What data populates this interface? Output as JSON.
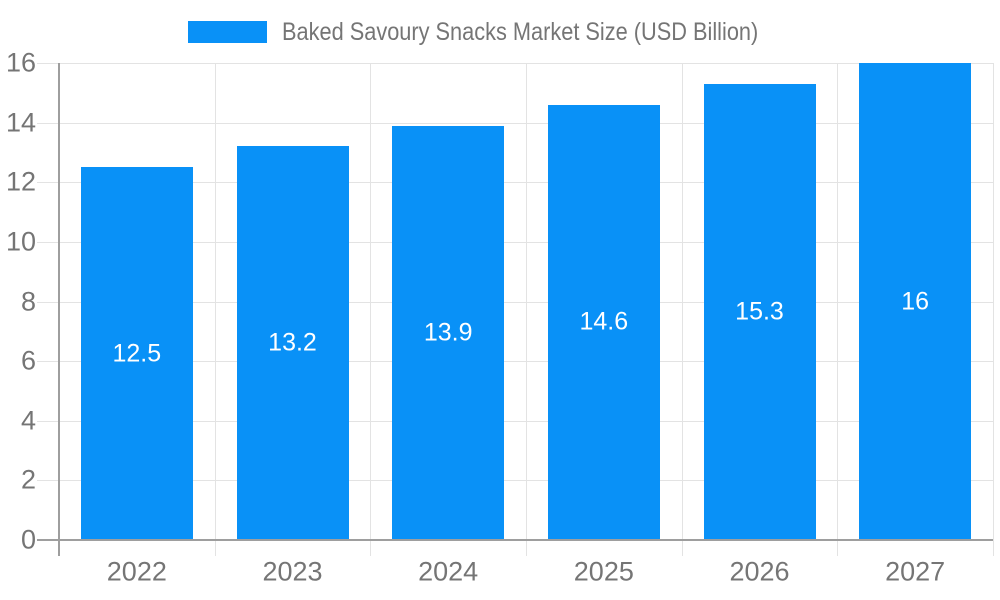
{
  "chart_data": {
    "type": "bar",
    "title": "Baked Savoury Snacks Market Size (USD Billion)",
    "categories": [
      "2022",
      "2023",
      "2024",
      "2025",
      "2026",
      "2027"
    ],
    "values": [
      12.5,
      13.2,
      13.9,
      14.6,
      15.3,
      16
    ],
    "value_labels": [
      "12.5",
      "13.2",
      "13.9",
      "14.6",
      "15.3",
      "16"
    ],
    "xlabel": "",
    "ylabel": "",
    "ylim": [
      0,
      16
    ],
    "ytick_step": 2,
    "ytick_labels": [
      "0",
      "2",
      "4",
      "6",
      "8",
      "10",
      "12",
      "14",
      "16"
    ],
    "grid": true,
    "legend_position": "top-center",
    "bar_value_position": "inside-center",
    "colors": {
      "bar": "#0991F7",
      "bar_label": "#FFFFFF",
      "axis_line": "#9E9E9E",
      "gridline": "#E3E3E3",
      "text": "#757575",
      "background": "#FFFFFF"
    }
  }
}
